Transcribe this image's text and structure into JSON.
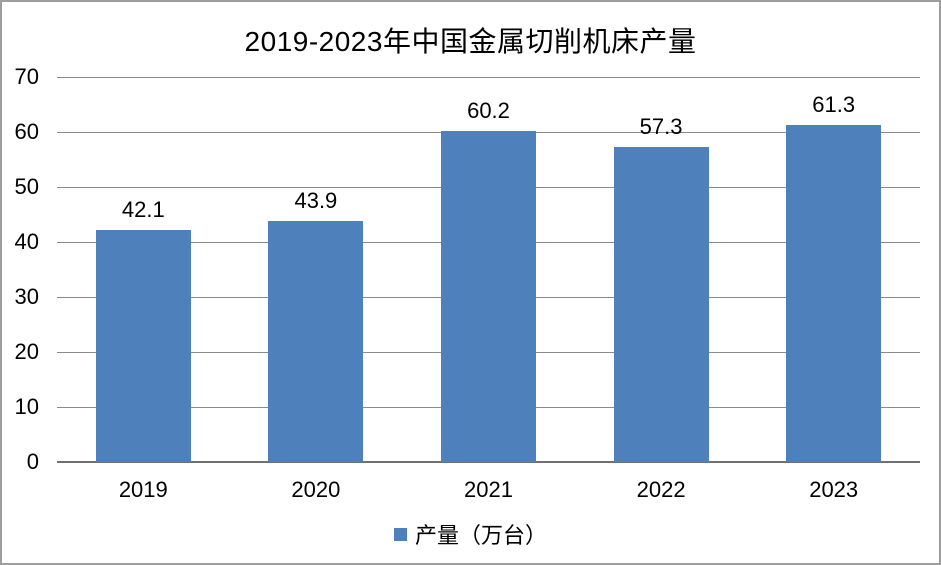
{
  "chart_data": {
    "type": "bar",
    "title": "2019-2023年中国金属切削机床产量",
    "categories": [
      "2019",
      "2020",
      "2021",
      "2022",
      "2023"
    ],
    "values": [
      42.1,
      43.9,
      60.2,
      57.3,
      61.3
    ],
    "data_labels": [
      "42.1",
      "43.9",
      "60.2",
      "57.3",
      "61.3"
    ],
    "yticks": [
      0,
      10,
      20,
      30,
      40,
      50,
      60,
      70
    ],
    "ylim": [
      0,
      70
    ],
    "xlabel": "",
    "ylabel": "",
    "grid": true,
    "legend_position": "bottom",
    "legend_label": "产量（万台）",
    "colors": {
      "bar": "#4e81bc",
      "gridline": "#8a8a8a",
      "axis_line": "#707070",
      "frame_border": "#9e9e9e",
      "text": "#000000"
    }
  }
}
